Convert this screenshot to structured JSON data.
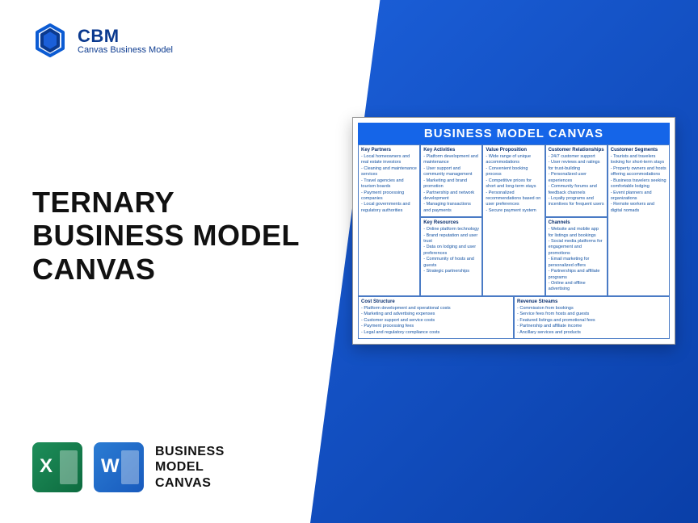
{
  "brand": {
    "name": "CBM",
    "tagline": "Canvas Business Model"
  },
  "title_lines": [
    "TERNARY",
    "BUSINESS MODEL",
    "CANVAS"
  ],
  "bottom_label_lines": [
    "BUSINESS",
    "MODEL",
    "CANVAS"
  ],
  "canvas": {
    "title": "BUSINESS MODEL CANVAS",
    "cells": {
      "key_partners": {
        "heading": "Key Partners",
        "items": [
          "Local homeowners and real estate investors",
          "Cleaning and maintenance services",
          "Travel agencies and tourism boards",
          "Payment processing companies",
          "Local governments and regulatory authorities"
        ]
      },
      "key_activities": {
        "heading": "Key Activities",
        "items": [
          "Platform development and maintenance",
          "User support and community management",
          "Marketing and brand promotion",
          "Partnership and network development",
          "Managing transactions and payments"
        ]
      },
      "key_resources": {
        "heading": "Key Resources",
        "items": [
          "Online platform technology",
          "Brand reputation and user trust",
          "Data on lodging and user preferences",
          "Community of hosts and guests",
          "Strategic partnerships"
        ]
      },
      "value_proposition": {
        "heading": "Value Proposition",
        "items": [
          "Wide range of unique accommodations",
          "Convenient booking process",
          "Competitive prices for short and long-term stays",
          "Personalized recommendations based on user preferences",
          "Secure payment system"
        ]
      },
      "customer_relationships": {
        "heading": "Customer Relationships",
        "items": [
          "24/7 customer support",
          "User reviews and ratings for trust-building",
          "Personalized user experiences",
          "Community forums and feedback channels",
          "Loyalty programs and incentives for frequent users"
        ]
      },
      "channels": {
        "heading": "Channels",
        "items": [
          "Website and mobile app for listings and bookings",
          "Social media platforms for engagement and promotions",
          "Email marketing for personalized offers",
          "Partnerships and affiliate programs",
          "Online and offline advertising"
        ]
      },
      "customer_segments": {
        "heading": "Customer Segments",
        "items": [
          "Tourists and travelers looking for short-term stays",
          "Property owners and hosts offering accommodations",
          "Business travelers seeking comfortable lodging",
          "Event planners and organizations",
          "Remote workers and digital nomads"
        ]
      },
      "cost_structure": {
        "heading": "Cost Structure",
        "items": [
          "Platform development and operational costs",
          "Marketing and advertising expenses",
          "Customer support and service costs",
          "Payment processing fees",
          "Legal and regulatory compliance costs"
        ]
      },
      "revenue_streams": {
        "heading": "Revenue Streams",
        "items": [
          "Commission from bookings",
          "Service fees from hosts and guests",
          "Featured listings and promotional fees",
          "Partnership and affiliate income",
          "Ancillary services and products"
        ]
      }
    }
  },
  "colors": {
    "brand_blue": "#0b3a8f",
    "panel_gradient_start": "#1b5fd9",
    "panel_gradient_end": "#0a3fa8",
    "canvas_header": "#1565e8",
    "cell_text": "#1453a3",
    "excel_green": "#1e8e5a",
    "word_blue": "#2b7cd3"
  }
}
